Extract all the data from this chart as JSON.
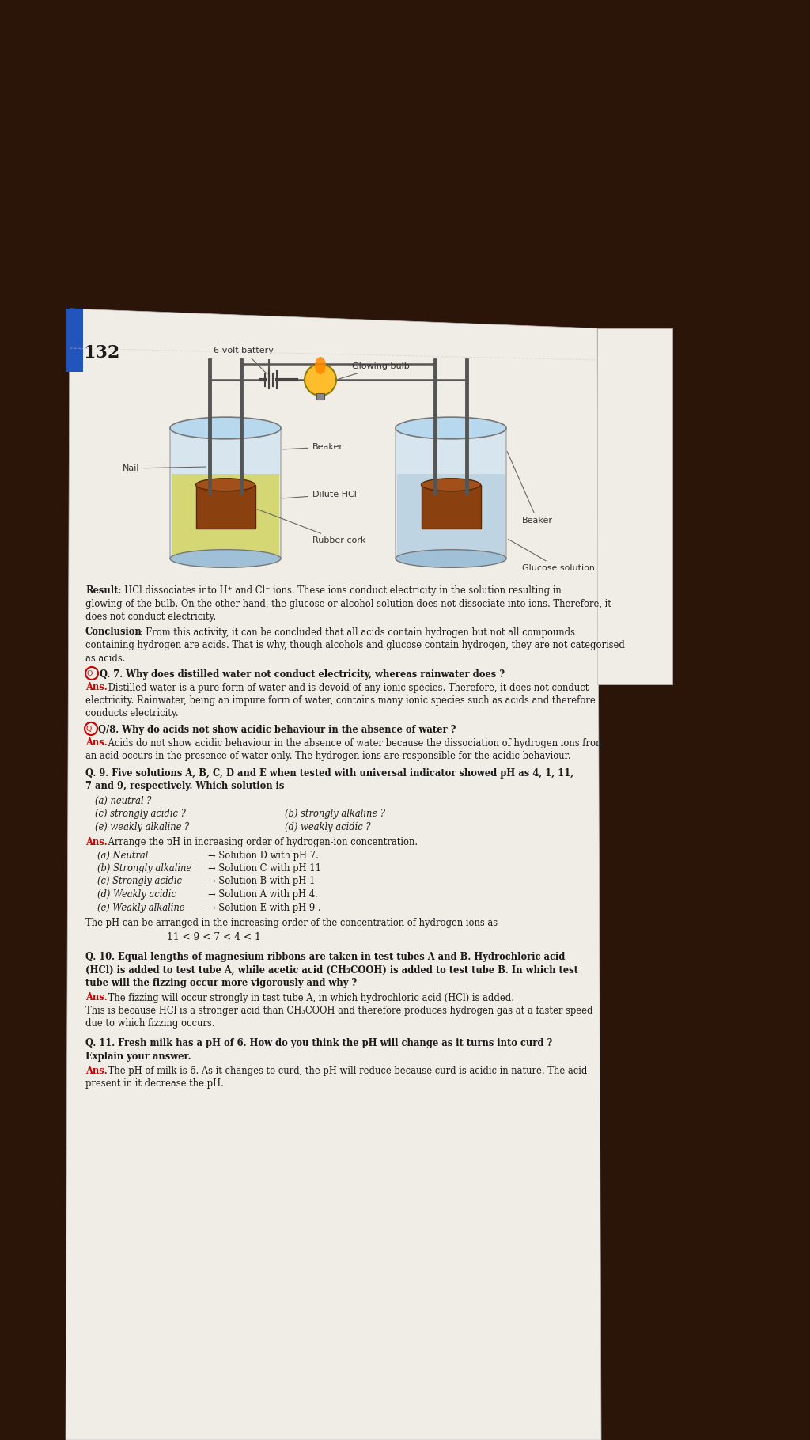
{
  "page_number": "132",
  "dark_bg": "#2a1508",
  "page_color": "#f0ede6",
  "text_dark": "#1a1a1a",
  "red_color": "#cc0000",
  "diagram": {
    "battery_label": "6-volt battery",
    "bulb_label": "Glowing bulb",
    "nail_label": "Nail",
    "beaker1_label": "Beaker",
    "hcl_label": "Dilute HCl",
    "cork_label": "Rubber cork",
    "beaker2_label": "Beaker",
    "glucose_label": "Glucose solution"
  },
  "lines": {
    "result_bold": "Result",
    "result1": " : HCl dissociates into H⁺ and Cl⁻ ions. These ions conduct electricity in the solution resulting in",
    "result2": "glowing of the bulb. On the other hand, the glucose or alcohol solution does not dissociate into ions. Therefore, it",
    "result3": "does not conduct electricity.",
    "conclusion_bold": "Conclusion",
    "conclusion1": " : From this activity, it can be concluded that all acids contain hydrogen but not all compounds",
    "conclusion2": "containing hydrogen are acids. That is why, though alcohols and glucose contain hydrogen, they are not categorised",
    "conclusion3": "as acids.",
    "q7": "Q. 7. Why does distilled water not conduct electricity, whereas rainwater does ?",
    "ans7_bold": "Ans.",
    "ans7a": " Distilled water is a pure form of water and is devoid of any ionic species. Therefore, it does not conduct",
    "ans7b": "electricity. Rainwater, being an impure form of water, contains many ionic species such as acids and therefore",
    "ans7c": "conducts electricity.",
    "q8": "Q/8. Why do acids not show acidic behaviour in the absence of water ?",
    "ans8_bold": "Ans.",
    "ans8a": " Acids do not show acidic behaviour in the absence of water because the dissociation of hydrogen ions from",
    "ans8b": "an acid occurs in the presence of water only. The hydrogen ions are responsible for the acidic behaviour.",
    "q9a": "Q. 9. Five solutions A, B, C, D and E when tested with universal indicator showed pH as 4, 1, 11,",
    "q9b": "7 and 9, respectively. Which solution is",
    "q9_opt_a": "(a) neutral ?",
    "q9_opt_b": "(b) strongly alkaline ?",
    "q9_opt_c": "(c) strongly acidic ?",
    "q9_opt_d": "(d) weakly acidic ?",
    "q9_opt_e": "(e) weakly alkaline ?",
    "ans9_intro_bold": "Ans.",
    "ans9_intro": " Arrange the pH in increasing order of hydrogen-ion concentration.",
    "ans9_a_it": "(a) Neutral",
    "ans9_a_r": "→ Solution D with pH 7.",
    "ans9_b_it": "(b) Strongly alkaline",
    "ans9_b_r": "→ Solution C with pH 11",
    "ans9_c_it": "(c) Strongly acidic",
    "ans9_c_r": "→ Solution B with pH 1",
    "ans9_d_it": "(d) Weakly acidic",
    "ans9_d_r": "→ Solution A with pH 4.",
    "ans9_e_it": "(e) Weakly alkaline",
    "ans9_e_r": "→ Solution E with pH 9 .",
    "ph_pre": "The pH can be arranged in the increasing order of the concentration of hydrogen ions as",
    "ph_order": "11 < 9 < 7 < 4 < 1",
    "q10a": "Q. 10. Equal lengths of magnesium ribbons are taken in test tubes A and B. Hydrochloric acid",
    "q10b": "(HCl) is added to test tube A, while acetic acid (CH₃COOH) is added to test tube B. In which test",
    "q10c": "tube will the fizzing occur more vigorously and why ?",
    "ans10_bold": "Ans.",
    "ans10a": " The fizzing will occur strongly in test tube A, in which hydrochloric acid (HCl) is added.",
    "ans10b": "This is because HCl is a stronger acid than CH₃COOH and therefore produces hydrogen gas at a faster speed",
    "ans10c": "due to which fizzing occurs.",
    "q11a": "Q. 11. Fresh milk has a pH of 6. How do you think the pH will change as it turns into curd ?",
    "q11b": "Explain your answer.",
    "ans11_bold": "Ans.",
    "ans11a": " The pH of milk is 6. As it changes to curd, the pH will reduce because curd is acidic in nature. The acid",
    "ans11b": "present in it decrease the pH."
  }
}
